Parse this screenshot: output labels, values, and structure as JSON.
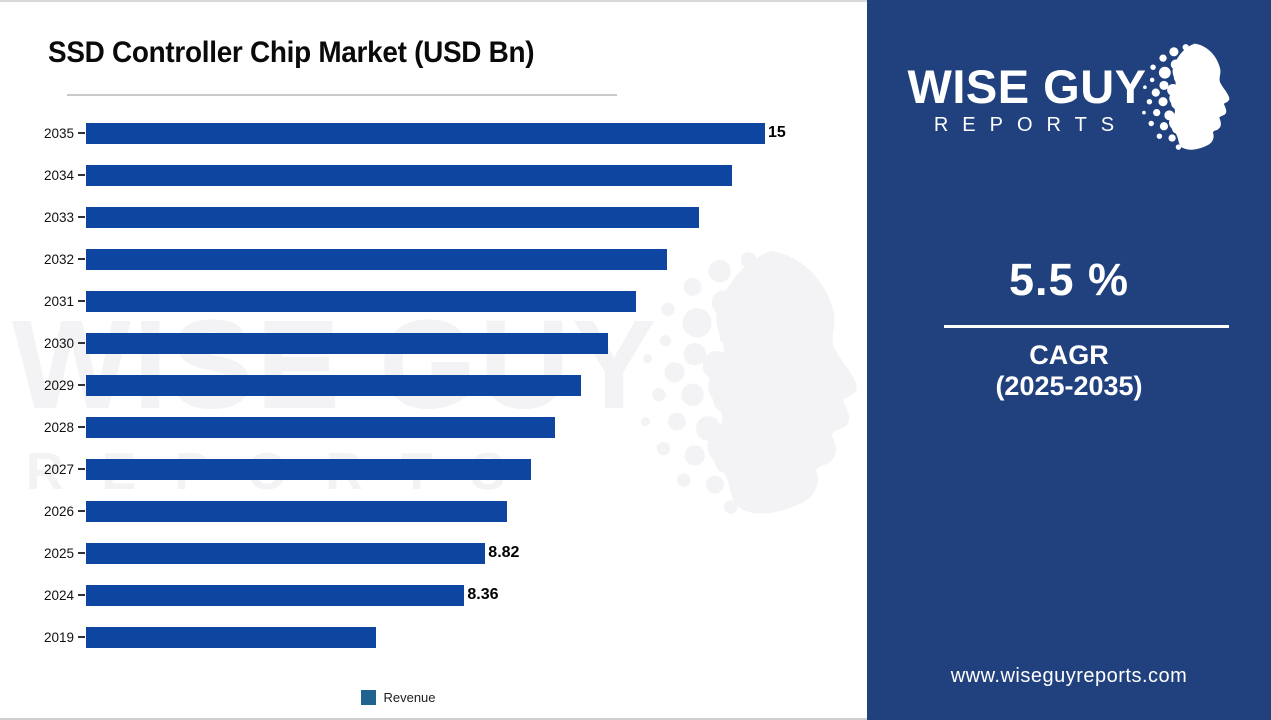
{
  "title": "SSD Controller Chip Market (USD Bn)",
  "legend": {
    "label": "Revenue",
    "swatch_color": "#20638f"
  },
  "chart_data": {
    "type": "bar",
    "orientation": "horizontal",
    "title": "SSD Controller Chip Market (USD Bn)",
    "series_name": "Revenue",
    "categories": [
      "2035",
      "2034",
      "2033",
      "2032",
      "2031",
      "2030",
      "2029",
      "2028",
      "2027",
      "2026",
      "2025",
      "2024",
      "2019"
    ],
    "values": [
      15,
      14.28,
      13.54,
      12.83,
      12.16,
      11.53,
      10.93,
      10.36,
      9.82,
      9.31,
      8.82,
      8.36,
      6.41
    ],
    "value_labels": [
      "15",
      "",
      "",
      "",
      "",
      "",
      "",
      "",
      "",
      "",
      "8.82",
      "8.36",
      ""
    ],
    "xlim": [
      0,
      16.5
    ],
    "grid": false,
    "bar_color": "#0e45a0",
    "legend_position": "bottom-center"
  },
  "watermark": {
    "line1": "WISE GUY",
    "line2": "REPORTS"
  },
  "sidebar": {
    "background": "#21417e",
    "logo": {
      "line1": "WISE GUY",
      "line2": "REPORTS"
    },
    "cagr_value": "5.5 %",
    "cagr_label_line1": "CAGR",
    "cagr_label_line2": "(2025-2035)",
    "website": "www.wiseguyreports.com"
  }
}
